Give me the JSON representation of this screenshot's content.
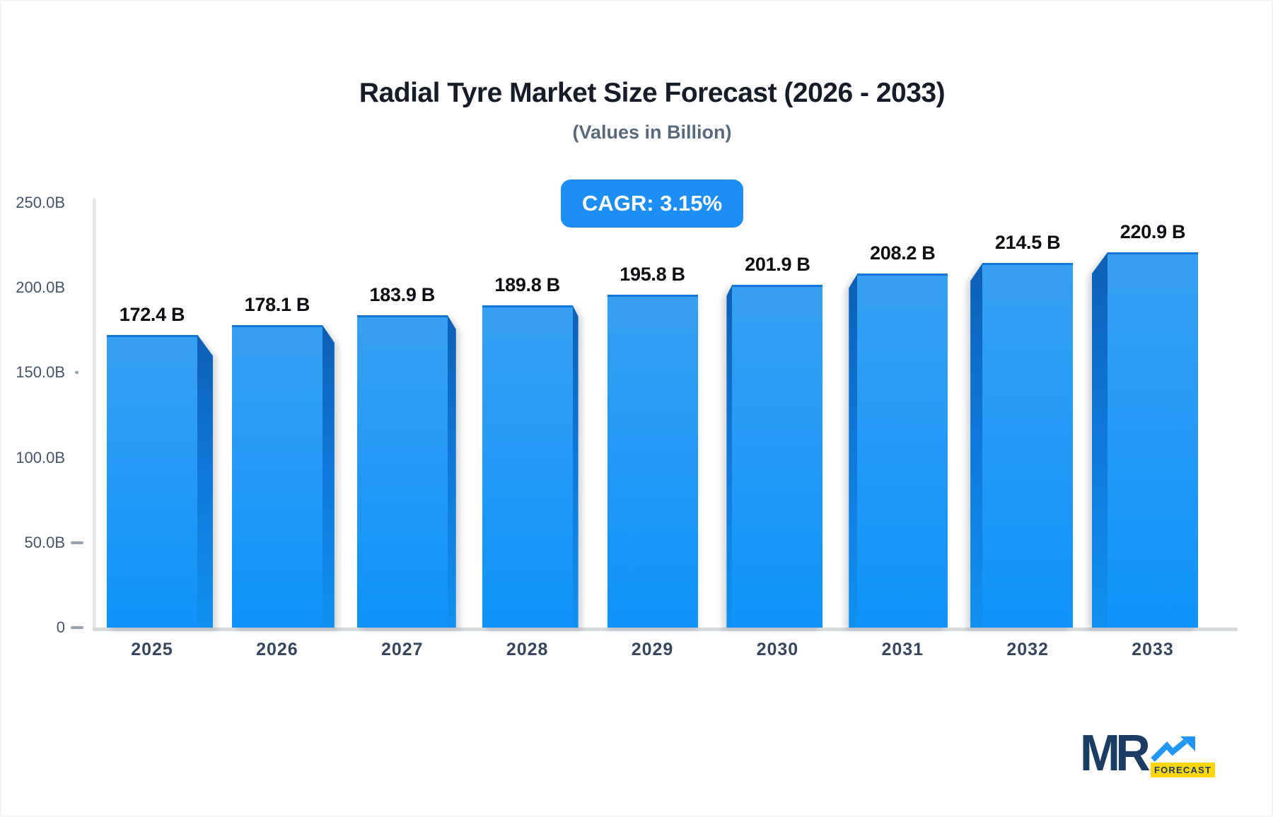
{
  "chart_data": {
    "type": "bar",
    "title": "Radial Tyre Market Size Forecast (2026 - 2033)",
    "subtitle": "(Values in Billion)",
    "cagr_label": "CAGR: 3.15%",
    "categories": [
      "2025",
      "2026",
      "2027",
      "2028",
      "2029",
      "2030",
      "2031",
      "2032",
      "2033"
    ],
    "series": [
      {
        "name": "Radial Tyre Market Size",
        "values": [
          172.4,
          178.1,
          183.9,
          189.8,
          195.8,
          201.9,
          208.2,
          214.5,
          220.9
        ]
      }
    ],
    "value_labels": [
      "172.4 B",
      "178.1 B",
      "183.9 B",
      "189.8 B",
      "195.8 B",
      "201.9 B",
      "208.2 B",
      "214.5 B",
      "220.9 B"
    ],
    "xlabel": "",
    "ylabel": "",
    "ylim": [
      0,
      250
    ],
    "yticks": [
      {
        "value": 0,
        "label": "0",
        "tick": "dash"
      },
      {
        "value": 50,
        "label": "50.0B",
        "tick": "dash"
      },
      {
        "value": 100,
        "label": "100.0B",
        "tick": "none"
      },
      {
        "value": 150,
        "label": "150.0B",
        "tick": "dot"
      },
      {
        "value": 200,
        "label": "200.0B",
        "tick": "none"
      },
      {
        "value": 250,
        "label": "250.0B",
        "tick": "none"
      }
    ],
    "grid": false,
    "legend_position": "none",
    "bar_style": "3d"
  },
  "colors": {
    "background": "#ffffff",
    "title": "#161d29",
    "subtitle": "#5a6a7d",
    "badge_bg": "#1d8ef6",
    "badge_text": "#ffffff",
    "bar_face_top": "#37a0f2",
    "bar_face_bottom": "#0f93fa",
    "bar_top_edge": "#1377d9",
    "bar_side_dark": "#0e5fb4",
    "bar_side_mid": "#0f77d8",
    "bar_side_light": "#1090f0",
    "axis_line": "#e7e9ec",
    "baseline": "#d7dadd",
    "tick": "#98a2ae",
    "ytick_label": "#44556b",
    "xtick_label": "#36465c",
    "value_label": "#0a0d12",
    "logo_navy": "#1b3d63",
    "logo_blue": "#2196f3",
    "logo_yellow": "#ffd60a"
  },
  "logo": {
    "brand": "MR",
    "tagline": "FORECAST"
  }
}
